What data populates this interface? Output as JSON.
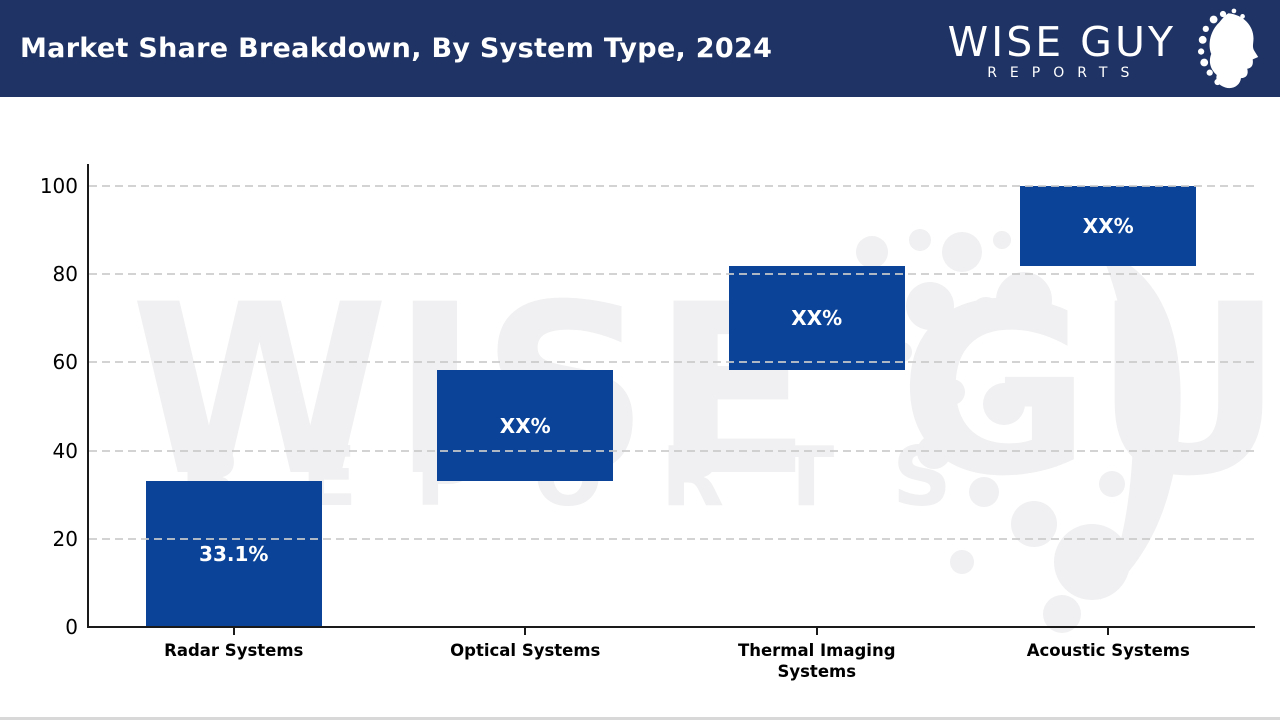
{
  "header": {
    "title": "Market Share Breakdown, By System Type, 2024",
    "logo": {
      "name": "WISE GUY",
      "sub": "REPORTS"
    }
  },
  "watermark": {
    "line1": "WISE GUY",
    "line2": "REPORTS"
  },
  "colors": {
    "header_bg": "#1f3464",
    "bar_blue": "#0a4398",
    "grid_gray": "#cbcbcb",
    "watermark_gray": "#f0f0f2"
  },
  "chart_data": {
    "type": "bar",
    "subtype": "waterfall",
    "title": "Market Share Breakdown, By System Type, 2024",
    "categories": [
      "Radar Systems",
      "Optical Systems",
      "Thermal Imaging Systems",
      "Acoustic Systems"
    ],
    "series": [
      {
        "name": "Market share (%)",
        "segments": [
          {
            "category": "Radar Systems",
            "base": 0,
            "top": 33.1,
            "label": "33.1%"
          },
          {
            "category": "Optical Systems",
            "base": 33.1,
            "top": 58.2,
            "label": "XX%"
          },
          {
            "category": "Thermal Imaging Systems",
            "base": 58.2,
            "top": 81.9,
            "label": "XX%"
          },
          {
            "category": "Acoustic Systems",
            "base": 81.9,
            "top": 100,
            "label": "XX%"
          }
        ]
      }
    ],
    "xlabel": "",
    "ylabel": "",
    "ylim": [
      0,
      105
    ],
    "yticks": [
      0,
      20,
      40,
      60,
      80,
      100
    ],
    "grid": "horizontal-dashed",
    "legend": "none",
    "bar_label_color": "#ffffff"
  }
}
